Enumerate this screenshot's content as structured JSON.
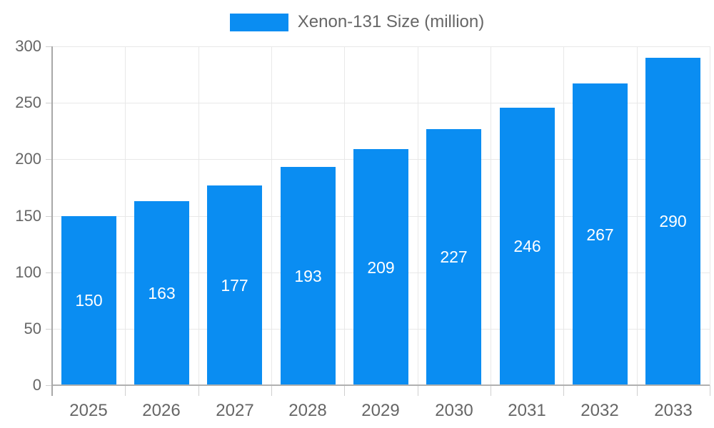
{
  "legend": {
    "label": "Xenon-131 Size (million)"
  },
  "chart_data": {
    "type": "bar",
    "title": "Xenon-131 Size (million)",
    "categories": [
      "2025",
      "2026",
      "2027",
      "2028",
      "2029",
      "2030",
      "2031",
      "2032",
      "2033"
    ],
    "values": [
      150,
      163,
      177,
      193,
      209,
      227,
      246,
      267,
      290
    ],
    "xlabel": "",
    "ylabel": "",
    "ylim": [
      0,
      300
    ],
    "yticks": [
      0,
      50,
      100,
      150,
      200,
      250,
      300
    ],
    "grid": true,
    "legend_position": "top",
    "value_labels": "inside-center",
    "colors": {
      "bar": "#0a8df2",
      "grid": "#e8e8e8",
      "axis": "#a8a8a8",
      "baseline": "#b0b0b0",
      "tick": "#cfcfcf",
      "text": "#666666",
      "value_label": "#ffffff"
    }
  }
}
